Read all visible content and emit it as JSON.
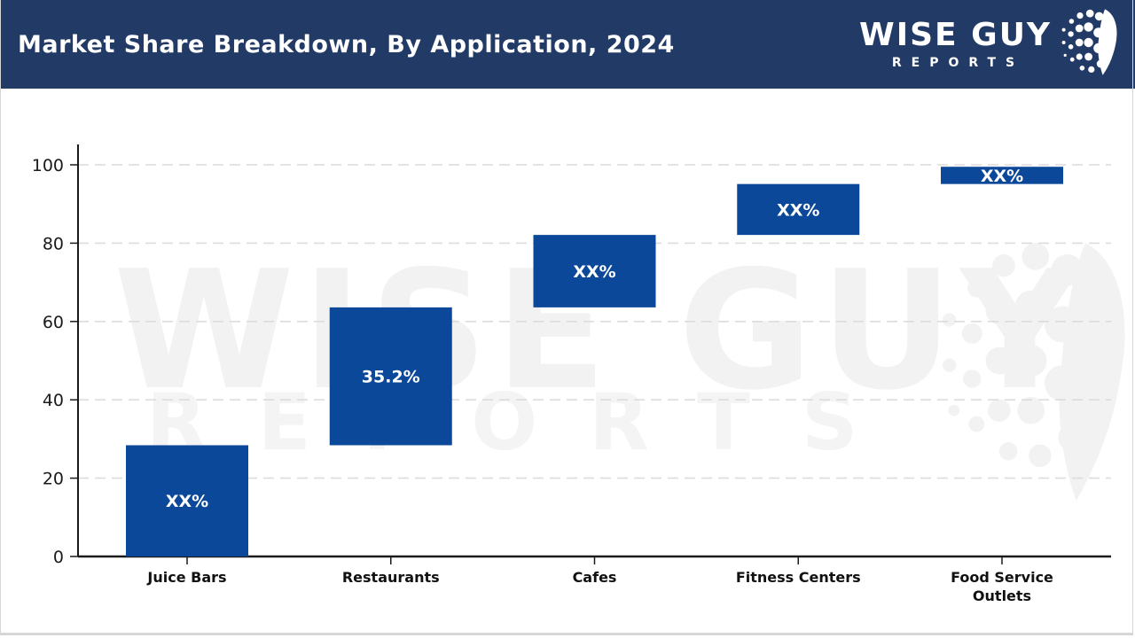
{
  "header": {
    "title": "Market Share Breakdown, By Application, 2024",
    "bg_color": "#213a66",
    "logo": {
      "line1": "WISE GUY",
      "line2": "REPORTS"
    }
  },
  "watermark": {
    "line1": "WISE GUY",
    "line2": "REPORTS"
  },
  "chart_data": {
    "type": "bar",
    "subtype": "waterfall",
    "title": "Market Share Breakdown, By Application, 2024",
    "categories": [
      "Juice Bars",
      "Restaurants",
      "Cafes",
      "Fitness Centers",
      "Food Service Outlets"
    ],
    "category_label_lines": [
      [
        "Juice Bars"
      ],
      [
        "Restaurants"
      ],
      [
        "Cafes"
      ],
      [
        "Fitness Centers"
      ],
      [
        "Food Service",
        "Outlets"
      ]
    ],
    "starts": [
      0,
      28.4,
      63.6,
      82.1,
      95.1
    ],
    "values": [
      28.4,
      35.2,
      18.5,
      13.0,
      4.4
    ],
    "bar_labels": [
      "XX%",
      "35.2%",
      "XX%",
      "XX%",
      "XX%"
    ],
    "y_ticks": [
      0,
      20,
      40,
      60,
      80,
      100
    ],
    "ylim": [
      0,
      105
    ],
    "xlabel": "",
    "ylabel": "",
    "grid": "horizontal-dashed",
    "legend": "none",
    "bar_color": "#0b4899",
    "bar_label_color": "#ffffff",
    "axis_color": "#1a1a1a",
    "grid_color": "#dcdcdc"
  }
}
